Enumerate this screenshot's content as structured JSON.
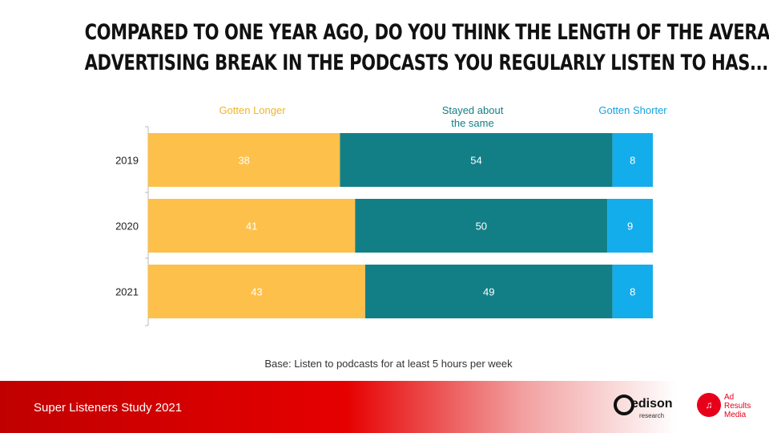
{
  "title": {
    "line1": "COMPARED TO ONE YEAR AGO, DO YOU THINK THE LENGTH OF THE AVERAGE",
    "line2": "ADVERTISING BREAK IN THE PODCASTS YOU REGULARLY LISTEN TO HAS...?"
  },
  "legend": {
    "longer": "Gotten Longer",
    "same_line1": "Stayed about",
    "same_line2": "the same",
    "shorter": "Gotten Shorter"
  },
  "colors": {
    "longer": "#fdc04b",
    "same": "#127f87",
    "shorter": "#14adec"
  },
  "base_note": "Base: Listen to podcasts for at least 5 hours per week",
  "footer": {
    "study": "Super Listeners Study 2021",
    "edison_name": "edison",
    "edison_sub": "research",
    "arm_line1": "Ad",
    "arm_line2": "Results",
    "arm_line3": "Media"
  },
  "chart_data": {
    "type": "bar",
    "orientation": "horizontal",
    "stacked": true,
    "percent_stacked": true,
    "categories": [
      "2019",
      "2020",
      "2021"
    ],
    "series": [
      {
        "name": "Gotten Longer",
        "values": [
          38,
          41,
          43
        ]
      },
      {
        "name": "Stayed about the same",
        "values": [
          54,
          50,
          49
        ]
      },
      {
        "name": "Gotten Shorter",
        "values": [
          8,
          9,
          8
        ]
      }
    ],
    "legend_position": "top",
    "grid": false
  }
}
